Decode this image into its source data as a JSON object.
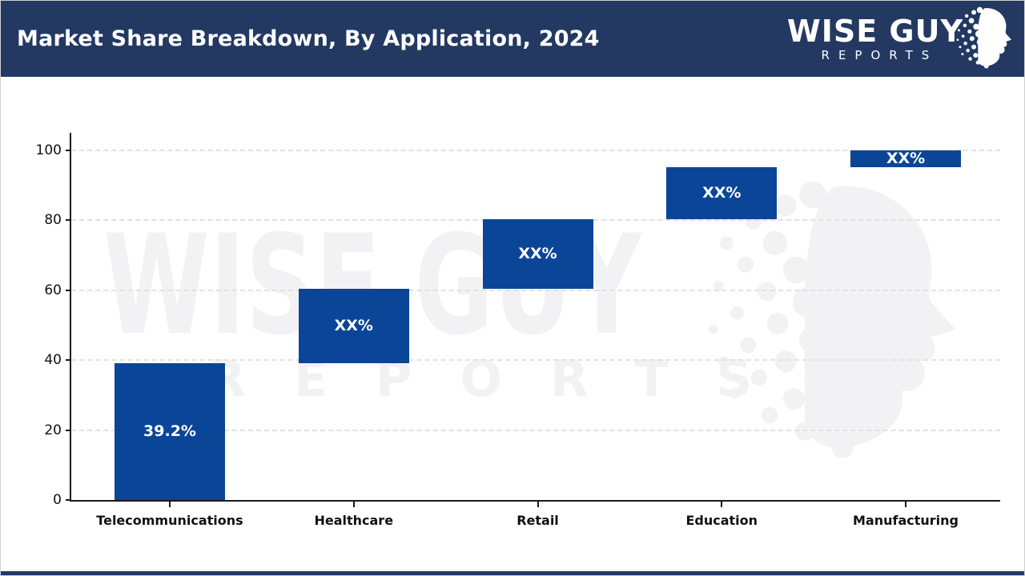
{
  "header": {
    "title": "Market Share Breakdown, By Application, 2024",
    "logo_line1": "WISE GUY",
    "logo_line2": "REPORTS"
  },
  "watermark": {
    "line1": "WISE GUY",
    "line2": "REPORTS"
  },
  "colors": {
    "header_bg": "#233962",
    "bar_blue": "#0a4598",
    "grid_gray": "#e2e2e2",
    "watermark_gray": "#f2f2f4",
    "label_white": "#ffffff"
  },
  "chart_data": {
    "type": "bar",
    "subtype": "waterfall-stacked-breakdown",
    "title": "Market Share Breakdown, By Application, 2024",
    "xlabel": "",
    "ylabel": "",
    "categories": [
      "Telecommunications",
      "Healthcare",
      "Retail",
      "Education",
      "Manufacturing"
    ],
    "segments": [
      {
        "category": "Telecommunications",
        "start": 0,
        "end": 39.2,
        "value": 39.2,
        "label": "39.2%"
      },
      {
        "category": "Healthcare",
        "start": 39.2,
        "end": 60.5,
        "value": 21.3,
        "label": "XX%"
      },
      {
        "category": "Retail",
        "start": 60.5,
        "end": 80.3,
        "value": 19.8,
        "label": "XX%"
      },
      {
        "category": "Education",
        "start": 80.3,
        "end": 95.3,
        "value": 15.0,
        "label": "XX%"
      },
      {
        "category": "Manufacturing",
        "start": 95.3,
        "end": 100.0,
        "value": 4.7,
        "label": "XX%"
      }
    ],
    "yticks": [
      0,
      20,
      40,
      60,
      80,
      100
    ],
    "ylim": [
      0,
      105
    ],
    "grid": "horizontal-dashed",
    "legend": "none",
    "bar_color": "#0a4598",
    "value_label_color": "#ffffff"
  }
}
